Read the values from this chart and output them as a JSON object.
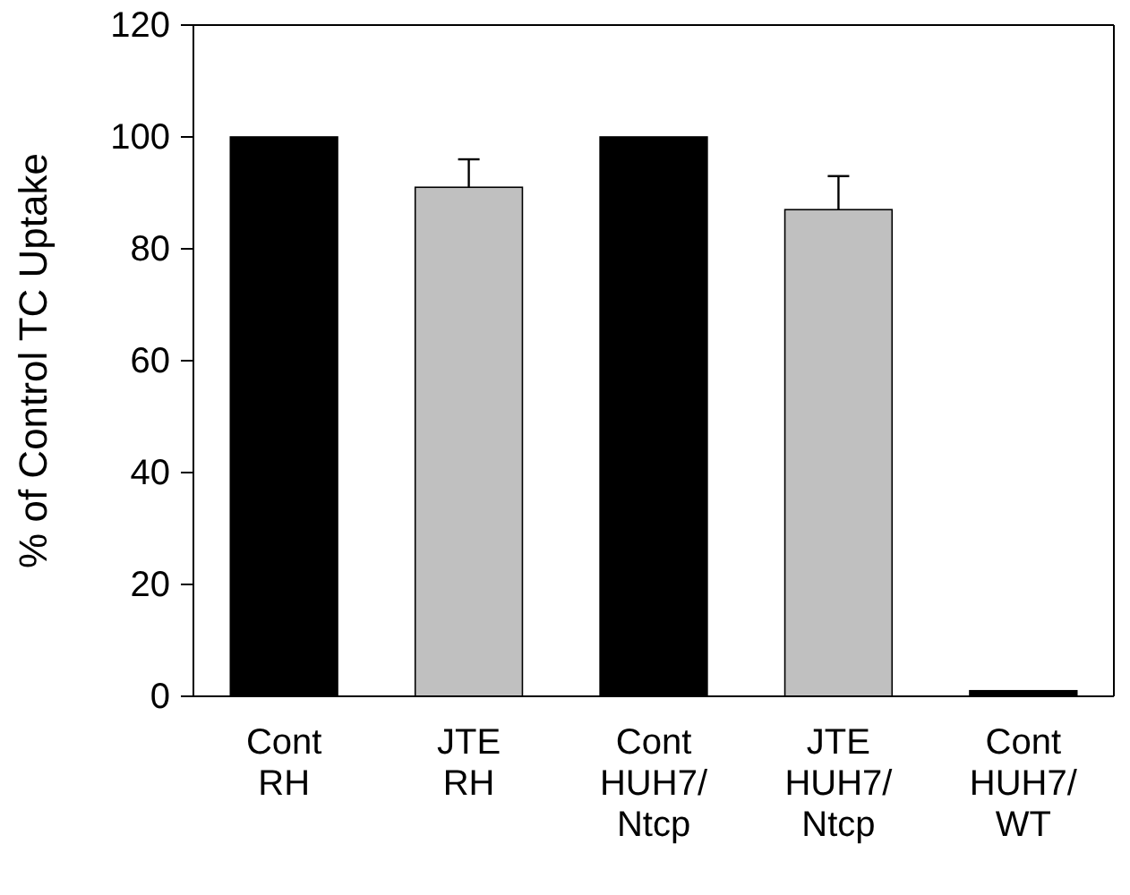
{
  "chart_data": {
    "type": "bar",
    "ylabel": "% of Control TC Uptake",
    "categories": [
      "Cont\nRH",
      "JTE\nRH",
      "Cont\nHUH7/\nNtcp",
      "JTE\nHUH7/\nNtcp",
      "Cont\nHUH7/\nWT"
    ],
    "values": [
      100,
      91,
      100,
      87,
      1
    ],
    "colors": [
      "#000000",
      "#c0c0c0",
      "#000000",
      "#c0c0c0",
      "#000000"
    ],
    "errors": [
      null,
      5,
      null,
      6,
      null
    ],
    "ylim": [
      0,
      120
    ],
    "yticks": [
      0,
      20,
      40,
      60,
      80,
      100,
      120
    ],
    "grid": false
  }
}
